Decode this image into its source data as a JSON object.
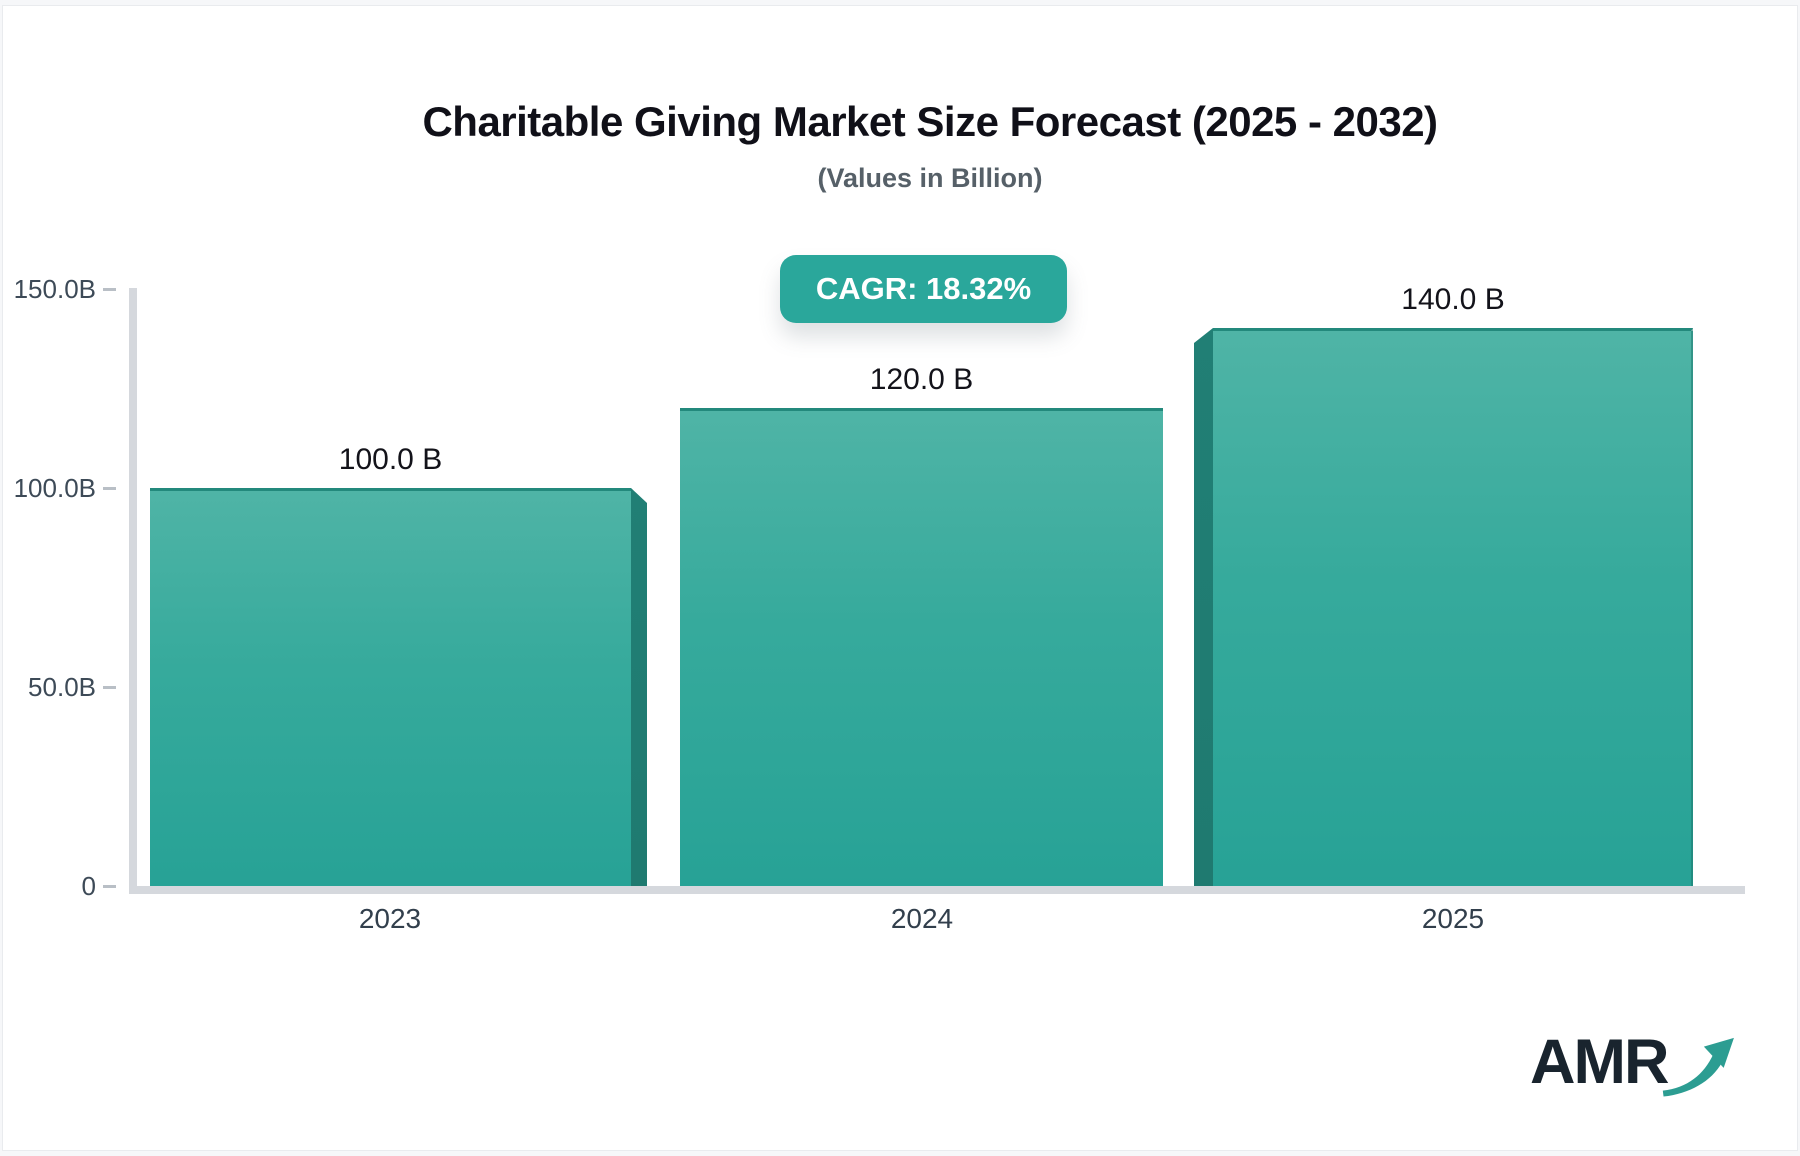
{
  "header": {
    "title": "Charitable Giving Market Size Forecast (2025 - 2032)",
    "subtitle": "(Values in Billion)"
  },
  "badge": {
    "label": "CAGR: 18.32%",
    "color": "#2aa79b"
  },
  "chart_data": {
    "type": "bar",
    "title": "Charitable Giving Market Size Forecast (2025 - 2032)",
    "subtitle": "(Values in Billion)",
    "annotation": "CAGR: 18.32%",
    "categories": [
      "2023",
      "2024",
      "2025"
    ],
    "values": [
      100.0,
      120.0,
      140.0
    ],
    "bar_labels": [
      "100.0 B",
      "120.0 B",
      "140.0 B"
    ],
    "unit": "Billion",
    "ylim": [
      0,
      150
    ],
    "y_ticks": [
      {
        "label": "150.0B",
        "value": 150
      },
      {
        "label": "100.0B",
        "value": 100
      },
      {
        "label": "50.0B",
        "value": 50
      },
      {
        "label": "0",
        "value": 0
      }
    ],
    "grid": false,
    "legend_position": "none",
    "colors": {
      "bar_gradient_top": "#4fb4a6",
      "bar_gradient_bottom": "#27a296",
      "bar_top_stroke": "#23897c",
      "bar_side_face": "#20796f",
      "axis_line": "#d5d8dd",
      "axis_text": "#3d4a57",
      "title_text": "#101018",
      "accent_teal": "#2aa79b"
    }
  },
  "logo": {
    "text": "AMR",
    "arrow_color": "#2c9d92",
    "text_color": "#19242e"
  }
}
